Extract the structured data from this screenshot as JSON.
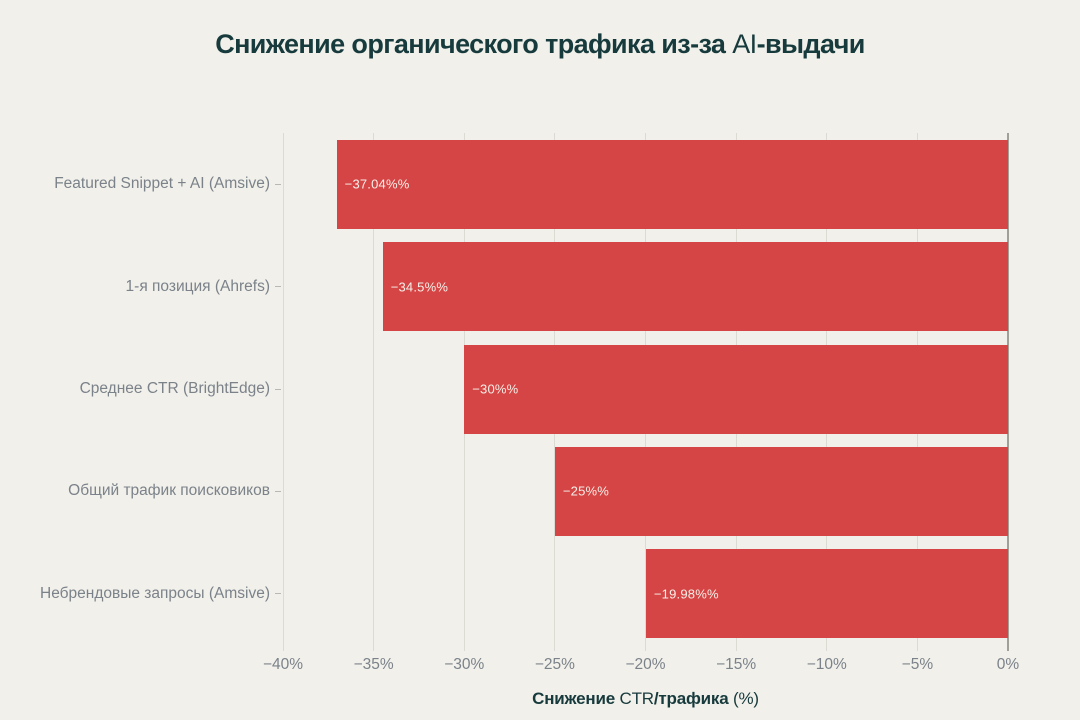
{
  "title": {
    "parts": [
      {
        "text": "Снижение органического трафика из-за ",
        "bold": true
      },
      {
        "text": "AI",
        "bold": false
      },
      {
        "text": "-выдачи",
        "bold": true
      }
    ]
  },
  "xaxis_title": {
    "parts": [
      {
        "text": "Снижение ",
        "bold": true
      },
      {
        "text": "CTR",
        "bold": false
      },
      {
        "text": "/трафика",
        "bold": true
      },
      {
        "text": " (%)",
        "bold": false
      }
    ]
  },
  "chart_data": {
    "type": "bar",
    "orientation": "horizontal",
    "title": "Снижение органического трафика из-за AI-выдачи",
    "xlabel": "Снижение CTR/трафика (%)",
    "categories": [
      "Featured Snippet + AI (Amsive)",
      "1-я позиция (Ahrefs)",
      "Среднее CTR (BrightEdge)",
      "Общий трафик поисковиков",
      "Небрендовые запросы (Amsive)"
    ],
    "values": [
      -37.04,
      -34.5,
      -30,
      -25,
      -19.98
    ],
    "bar_labels": [
      "−37.04%%",
      "−34.5%%",
      "−30%%",
      "−25%%",
      "−19.98%%"
    ],
    "xlim": [
      -40,
      0
    ],
    "x_tick_values": [
      -40,
      -35,
      -30,
      -25,
      -20,
      -15,
      -10,
      -5,
      0
    ],
    "x_tick_labels": [
      "−40%",
      "−35%",
      "−30%",
      "−25%",
      "−20%",
      "−15%",
      "−10%",
      "−5%",
      "0%"
    ],
    "grid": true,
    "legend": "none"
  },
  "colors": {
    "bg": "#f1f0ea",
    "bar": "#d64545",
    "title-text": "#173a3d",
    "axis-text": "#7b828a",
    "gridline": "#dbdbd3",
    "zero-line": "#a0a099",
    "bar-label-text": "#f5f0e9",
    "tick-mark": "#b9b9b2"
  }
}
